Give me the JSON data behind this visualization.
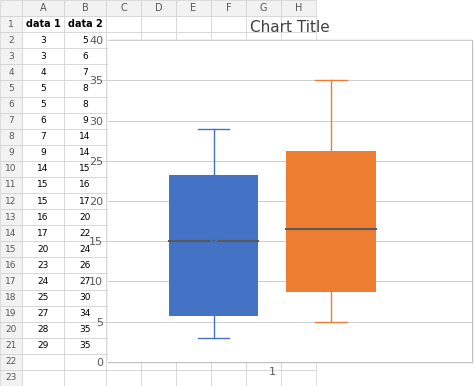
{
  "data1": [
    3,
    3,
    4,
    5,
    5,
    6,
    7,
    9,
    14,
    15,
    15,
    16,
    17,
    20,
    23,
    24,
    25,
    27,
    28,
    29
  ],
  "data2": [
    5,
    6,
    7,
    8,
    8,
    9,
    14,
    14,
    15,
    16,
    17,
    20,
    22,
    24,
    26,
    27,
    30,
    34,
    35,
    35
  ],
  "title": "Chart Title",
  "title_fontsize": 11,
  "title_color": "#404040",
  "box_color1": "#4472C4",
  "box_color2": "#ED7D31",
  "median_color": "#595959",
  "xlabel_tick": "1",
  "ylim": [
    0,
    40
  ],
  "yticks": [
    0,
    5,
    10,
    15,
    20,
    25,
    30,
    35,
    40
  ],
  "background_color": "#FFFFFF",
  "grid_color": "#D0D0D0",
  "excel_bg": "#FFFFFF",
  "excel_grid": "#D0D0D0",
  "excel_header_bg": "#F2F2F2",
  "excel_header_text": "#595959",
  "col_headers": [
    "",
    "A",
    "B",
    "C",
    "D",
    "E",
    "F",
    "G",
    "H"
  ],
  "row_headers": [
    "1",
    "2",
    "3",
    "4",
    "5",
    "6",
    "7",
    "8",
    "9",
    "10",
    "11",
    "12",
    "13",
    "14",
    "15",
    "16",
    "17",
    "18",
    "19",
    "20",
    "21",
    "22",
    "23"
  ],
  "sheet_data1_label": "data 1",
  "sheet_data2_label": "data 2",
  "sheet_col_a": [
    3,
    3,
    4,
    5,
    5,
    6,
    7,
    9,
    14,
    15,
    15,
    16,
    17,
    20,
    23,
    24,
    25,
    27,
    28,
    29
  ],
  "sheet_col_b": [
    5,
    6,
    7,
    8,
    8,
    9,
    14,
    14,
    15,
    16,
    17,
    20,
    22,
    24,
    26,
    27,
    30,
    34,
    35,
    35
  ],
  "chart_border_color": "#BFBFBF",
  "chart_area_bg": "#FFFFFF"
}
